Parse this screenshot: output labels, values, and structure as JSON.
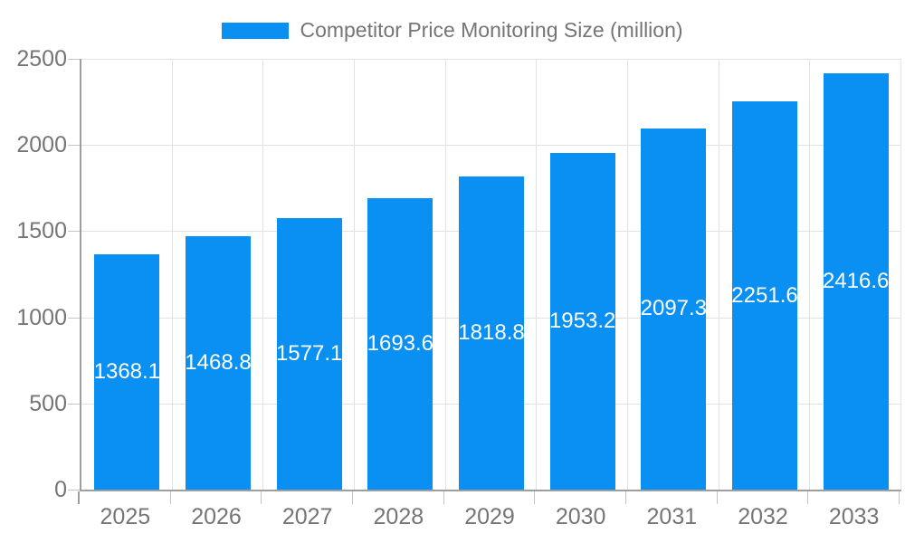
{
  "legend": {
    "label": "Competitor Price Monitoring Size (million)"
  },
  "colors": {
    "bar": "#0990f2",
    "axis_text": "#757575",
    "grid_line": "#e2e2e2",
    "axis_line": "#9e9e9e",
    "tick_line": "#c4c4c4",
    "value_label": "#ffffff",
    "background": "#ffffff"
  },
  "chart_data": {
    "type": "bar",
    "title": "Competitor Price Monitoring Size (million)",
    "categories": [
      "2025",
      "2026",
      "2027",
      "2028",
      "2029",
      "2030",
      "2031",
      "2032",
      "2033"
    ],
    "values": [
      1368.1,
      1468.8,
      1577.1,
      1693.6,
      1818.8,
      1953.2,
      2097.3,
      2251.6,
      2416.6
    ],
    "value_labels": [
      "1368.1",
      "1468.8",
      "1577.1",
      "1693.6",
      "1818.8",
      "1953.2",
      "2097.3",
      "2251.6",
      "2416.6"
    ],
    "xlabel": "",
    "ylabel": "",
    "ylim": [
      0,
      2500
    ],
    "yticks": [
      0,
      500,
      1000,
      1500,
      2000,
      2500
    ],
    "grid": true,
    "legend_position": "top",
    "value_label_position": "inside-center",
    "series": [
      {
        "name": "Competitor Price Monitoring Size (million)",
        "values": [
          1368.1,
          1468.8,
          1577.1,
          1693.6,
          1818.8,
          1953.2,
          2097.3,
          2251.6,
          2416.6
        ]
      }
    ]
  }
}
